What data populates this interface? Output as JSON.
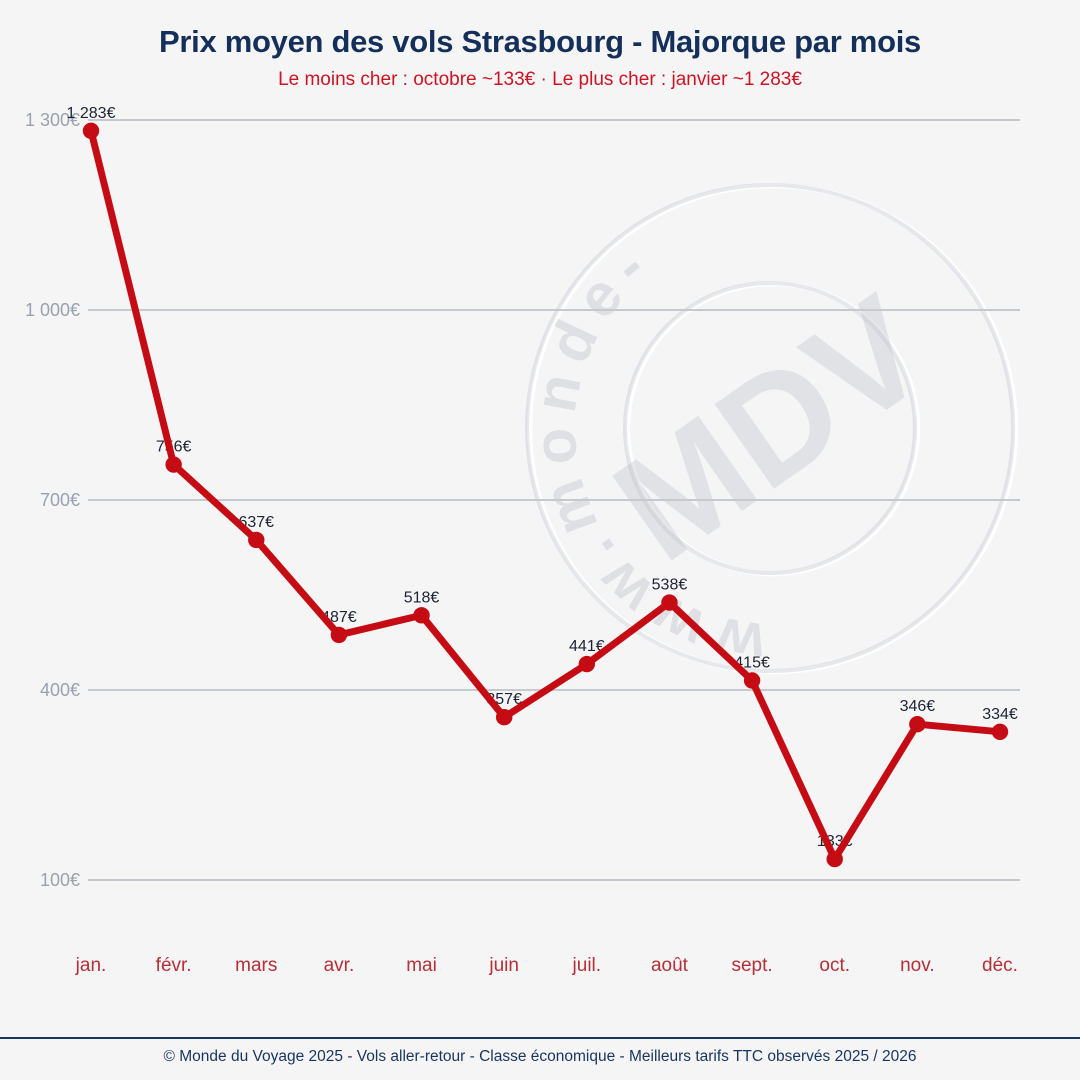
{
  "header": {
    "title": "Prix moyen des vols Strasbourg - Majorque par mois",
    "subtitle": "Le moins cher : octobre ~133€ · Le plus cher : janvier ~1 283€"
  },
  "footer": {
    "credit": "© Monde du Voyage 2025 - Vols aller-retour - Classe économique - Meilleurs tarifs TTC observés 2025 / 2026"
  },
  "watermark": {
    "ring_text": "www.monde-du-voyage.com - ",
    "center_text": "MDV"
  },
  "colors": {
    "background": "#f5f5f6",
    "title": "#14305a",
    "subtitle": "#ce1322",
    "line": "#c50b13",
    "point_label": "#1c2434",
    "y_axis_label": "#99a1b0",
    "gridline": "#c6c9ce",
    "month_label": "#b42f38",
    "footer": "#17355e",
    "watermark": "rgba(172,177,186,0.30)"
  },
  "chart_data": {
    "type": "line",
    "title": "Prix moyen des vols Strasbourg - Majorque par mois",
    "categories": [
      "jan.",
      "févr.",
      "mars",
      "avr.",
      "mai",
      "juin",
      "juil.",
      "août",
      "sept.",
      "oct.",
      "nov.",
      "déc."
    ],
    "values": [
      1283,
      756,
      637,
      487,
      518,
      357,
      441,
      538,
      415,
      133,
      346,
      334
    ],
    "point_labels": [
      "1 283€",
      "756€",
      "637€",
      "487€",
      "518€",
      "357€",
      "441€",
      "538€",
      "415€",
      "133€",
      "346€",
      "334€"
    ],
    "yticks": {
      "values": [
        1300,
        1000,
        700,
        400,
        100
      ],
      "labels": [
        "1 300€",
        "1 000€",
        "700€",
        "400€",
        "100€"
      ]
    },
    "ylim": [
      100,
      1300
    ],
    "xlabel": "",
    "ylabel": "",
    "grid": true,
    "legend": false,
    "min_point": {
      "month": "octobre",
      "value": 133
    },
    "max_point": {
      "month": "janvier",
      "value": 1283
    }
  }
}
